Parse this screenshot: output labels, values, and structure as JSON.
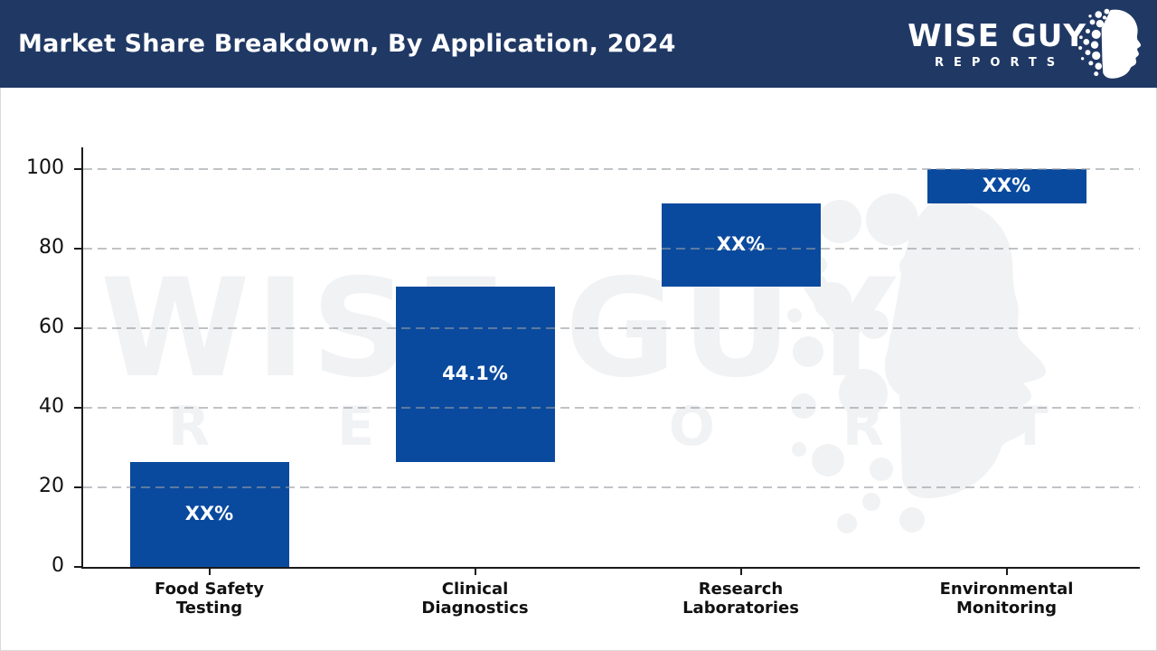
{
  "header": {
    "title": "Market Share Breakdown, By Application, 2024",
    "logo": {
      "brand": "WISE GUY",
      "sub": "REPORTS"
    }
  },
  "watermark": {
    "brand": "WISE GUY",
    "sub": "R E P O R T S"
  },
  "chart_data": {
    "type": "bar",
    "variant": "waterfall",
    "title": "Market Share Breakdown, By Application, 2024",
    "categories": [
      "Food Safety Testing",
      "Clinical Diagnostics",
      "Research Laboratories",
      "Environmental Monitoring"
    ],
    "category_label_lines": [
      [
        "Food Safety",
        "Testing"
      ],
      [
        "Clinical",
        "Diagnostics"
      ],
      [
        "Research",
        "Laboratories"
      ],
      [
        "Environmental",
        "Monitoring"
      ]
    ],
    "segments": [
      {
        "category": "Food Safety Testing",
        "start": 0,
        "end": 26.4,
        "label": "XX%"
      },
      {
        "category": "Clinical Diagnostics",
        "start": 26.4,
        "end": 70.5,
        "label": "44.1%"
      },
      {
        "category": "Research Laboratories",
        "start": 70.5,
        "end": 91.3,
        "label": "XX%"
      },
      {
        "category": "Environmental Monitoring",
        "start": 91.3,
        "end": 100,
        "label": "XX%"
      }
    ],
    "ylim": [
      0,
      105
    ],
    "yticks": [
      0,
      20,
      40,
      60,
      80,
      100
    ],
    "xlabel": "",
    "ylabel": "",
    "grid": "dashed-horizontal",
    "legend": "none",
    "bar_color": "#0a4a9e",
    "bar_label_color": "#ffffff"
  },
  "colors": {
    "header_bg": "#203864",
    "bar": "#0a4a9e",
    "watermark": "#f1f2f4",
    "axis": "#1a1a1a",
    "panel_border": "#d9d9d9"
  }
}
